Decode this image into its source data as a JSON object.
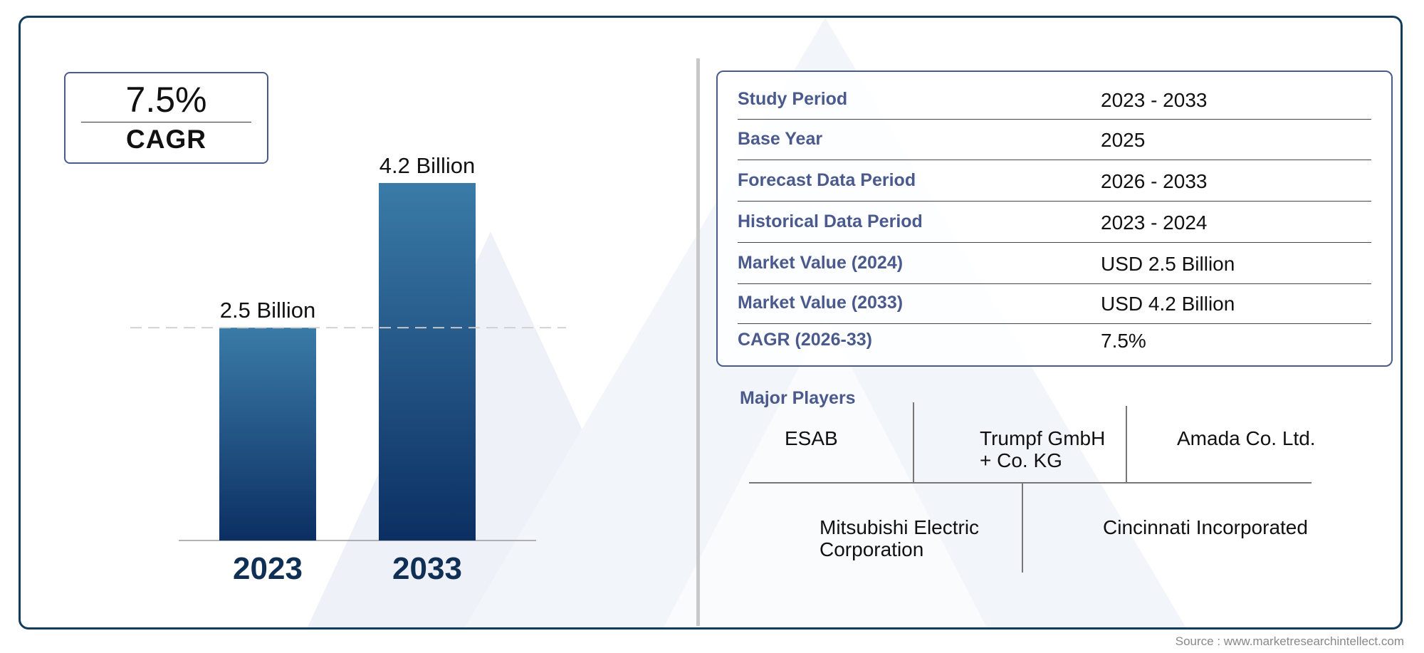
{
  "cagr": {
    "value": "7.5%",
    "label": "CAGR"
  },
  "chart_data": {
    "type": "bar",
    "categories": [
      "2023",
      "2033"
    ],
    "values": [
      2.5,
      4.2
    ],
    "data_labels": [
      "2.5 Billion",
      "4.2 Billion"
    ],
    "title": "",
    "xlabel": "",
    "ylabel": "",
    "ylim": [
      0,
      4.2
    ],
    "colors": {
      "bar_top": "#3a7ba8",
      "bar_bottom": "#0c2f62",
      "year_text": "#0f2f55"
    },
    "reference_line": {
      "value": 2.5,
      "style": "dashed"
    }
  },
  "summary_table": [
    {
      "label": "Study Period",
      "value": "2023 - 2033"
    },
    {
      "label": "Base Year",
      "value": "2025"
    },
    {
      "label": "Forecast Data Period",
      "value": "2026 - 2033"
    },
    {
      "label": "Historical Data Period",
      "value": "2023 - 2024"
    },
    {
      "label": "Market Value (2024)",
      "value": "USD 2.5 Billion"
    },
    {
      "label": "Market Value (2033)",
      "value": "USD 4.2 Billion"
    },
    {
      "label": "CAGR (2026-33)",
      "value": "7.5%"
    }
  ],
  "major_players": {
    "title": "Major Players",
    "names": [
      "ESAB",
      "Trumpf GmbH + Co. KG",
      "Amada Co. Ltd.",
      "Mitsubishi Electric Corporation",
      "Cincinnati Incorporated"
    ]
  },
  "source": "Source : www.marketresearchintellect.com"
}
